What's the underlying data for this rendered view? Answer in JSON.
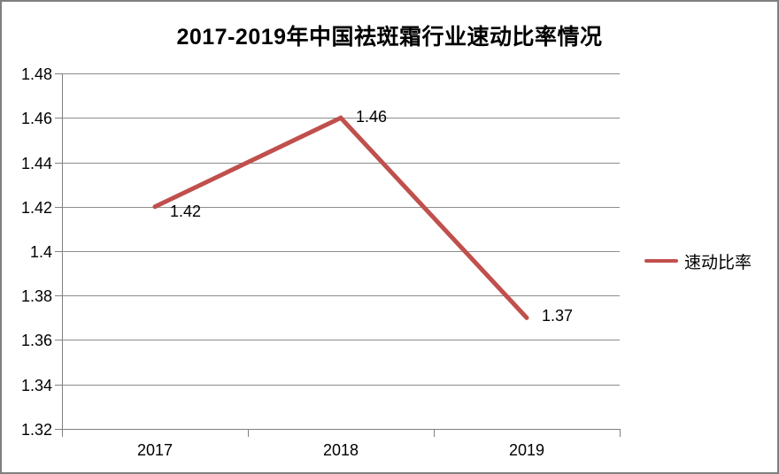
{
  "chart_data": {
    "type": "line",
    "title": "2017-2019年中国祛斑霜行业速动比率情况",
    "categories": [
      "2017",
      "2018",
      "2019"
    ],
    "series": [
      {
        "name": "速动比率",
        "values": [
          1.42,
          1.46,
          1.37
        ]
      }
    ],
    "data_labels": [
      "1.42",
      "1.46",
      "1.37"
    ],
    "xlabel": "",
    "ylabel": "",
    "ylim": [
      1.32,
      1.48
    ],
    "ytick_step": 0.02,
    "ytick_labels": [
      "1.32",
      "1.34",
      "1.36",
      "1.38",
      "1.4",
      "1.42",
      "1.44",
      "1.46",
      "1.48"
    ],
    "grid": true,
    "legend_position": "right"
  },
  "legend": {
    "label": "速动比率"
  },
  "colors": {
    "line": "#c0504d",
    "grid": "#8c8c8c",
    "axis": "#808080",
    "text": "#000000",
    "frame_border": "#7f7f7f",
    "background": "#ffffff"
  }
}
